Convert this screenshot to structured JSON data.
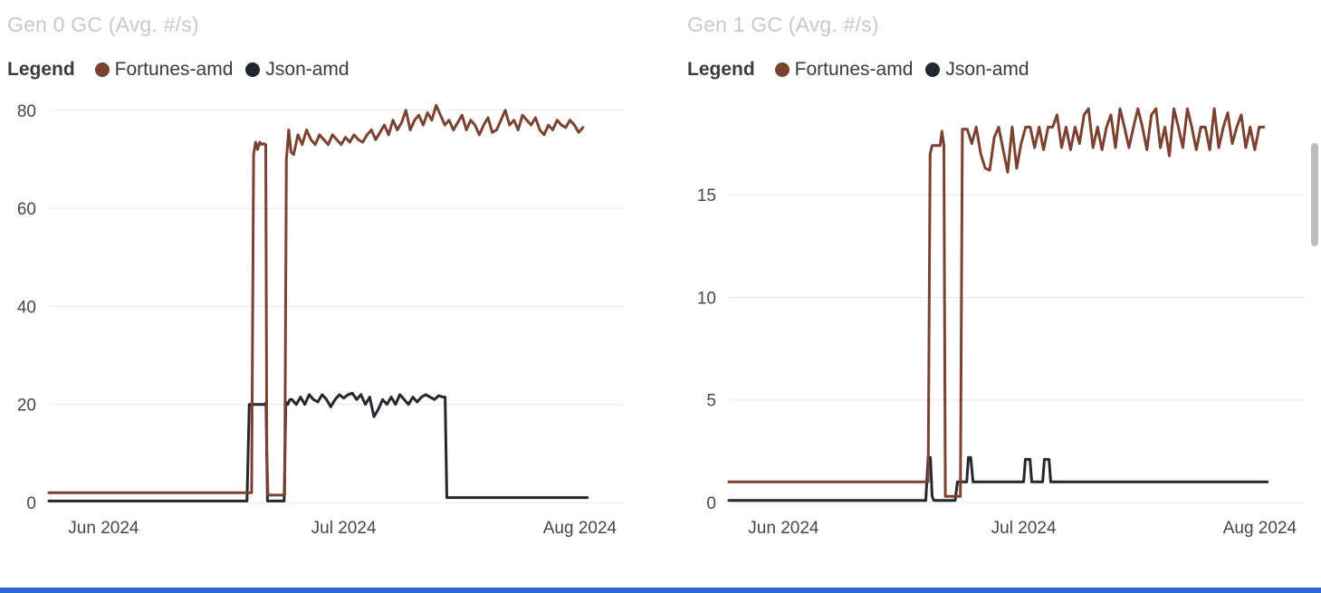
{
  "page": {
    "background": "#ffffff",
    "accent_bar_color": "#2c66cf",
    "scrollbar_color": "#b9bcc1"
  },
  "chart_data": [
    {
      "type": "line",
      "title": "Gen 0 GC (Avg. #/s)",
      "legend_label": "Legend",
      "legend_position": "top",
      "grid": true,
      "ylim": [
        0,
        82
      ],
      "y_max": 82,
      "y_ticks": [
        0,
        20,
        40,
        60,
        80
      ],
      "x_ticks": [
        {
          "pos": 0.095,
          "label": "Jun 2024"
        },
        {
          "pos": 0.512,
          "label": "Jul 2024"
        },
        {
          "pos": 0.922,
          "label": "Aug 2024"
        }
      ],
      "series": [
        {
          "name": "Fortunes-amd",
          "color": "#7b4131",
          "points": [
            [
              0,
              2
            ],
            [
              0.345,
              2
            ],
            [
              0.352,
              2
            ],
            [
              0.3555,
              71
            ],
            [
              0.359,
              73.5
            ],
            [
              0.3625,
              72
            ],
            [
              0.366,
              73.5
            ],
            [
              0.3695,
              73
            ],
            [
              0.373,
              73.2
            ],
            [
              0.3765,
              73
            ],
            [
              0.3785,
              10
            ],
            [
              0.3805,
              1.5
            ],
            [
              0.4095,
              1.5
            ],
            [
              0.4125,
              70
            ],
            [
              0.4165,
              76
            ],
            [
              0.4205,
              71.5
            ],
            [
              0.425,
              71
            ],
            [
              0.4325,
              75
            ],
            [
              0.44,
              73
            ],
            [
              0.4475,
              76
            ],
            [
              0.455,
              74
            ],
            [
              0.4625,
              73
            ],
            [
              0.47,
              75
            ],
            [
              0.4775,
              74
            ],
            [
              0.485,
              73
            ],
            [
              0.4925,
              75
            ],
            [
              0.5,
              74
            ],
            [
              0.5075,
              73
            ],
            [
              0.515,
              74.5
            ],
            [
              0.5225,
              73.5
            ],
            [
              0.53,
              75
            ],
            [
              0.5375,
              74
            ],
            [
              0.545,
              73.5
            ],
            [
              0.5525,
              75
            ],
            [
              0.56,
              76
            ],
            [
              0.5675,
              74
            ],
            [
              0.575,
              75.5
            ],
            [
              0.5825,
              77
            ],
            [
              0.59,
              75
            ],
            [
              0.5975,
              78
            ],
            [
              0.605,
              76
            ],
            [
              0.6125,
              77.5
            ],
            [
              0.62,
              80
            ],
            [
              0.6275,
              76
            ],
            [
              0.635,
              78
            ],
            [
              0.6425,
              79
            ],
            [
              0.65,
              77
            ],
            [
              0.6575,
              79.5
            ],
            [
              0.665,
              78
            ],
            [
              0.6725,
              81
            ],
            [
              0.68,
              79
            ],
            [
              0.6875,
              77
            ],
            [
              0.695,
              78
            ],
            [
              0.7025,
              76
            ],
            [
              0.71,
              77.5
            ],
            [
              0.7175,
              79
            ],
            [
              0.725,
              76
            ],
            [
              0.7325,
              78
            ],
            [
              0.74,
              77
            ],
            [
              0.7475,
              75
            ],
            [
              0.755,
              77
            ],
            [
              0.7625,
              78.5
            ],
            [
              0.77,
              75.5
            ],
            [
              0.7775,
              76
            ],
            [
              0.785,
              78
            ],
            [
              0.7925,
              80
            ],
            [
              0.8,
              77
            ],
            [
              0.8075,
              78
            ],
            [
              0.815,
              76
            ],
            [
              0.8225,
              79
            ],
            [
              0.83,
              78
            ],
            [
              0.8375,
              77
            ],
            [
              0.845,
              78.5
            ],
            [
              0.8525,
              76
            ],
            [
              0.86,
              75
            ],
            [
              0.8675,
              77
            ],
            [
              0.875,
              76
            ],
            [
              0.8825,
              78
            ],
            [
              0.89,
              77
            ],
            [
              0.8975,
              76.5
            ],
            [
              0.905,
              78
            ],
            [
              0.9125,
              77
            ],
            [
              0.92,
              75.5
            ],
            [
              0.9275,
              76.5
            ]
          ]
        },
        {
          "name": "Json-amd",
          "color": "#23272f",
          "points": [
            [
              0,
              0.3
            ],
            [
              0.344,
              0.3
            ],
            [
              0.348,
              20
            ],
            [
              0.3745,
              20
            ],
            [
              0.377,
              20.3
            ],
            [
              0.3795,
              0.3
            ],
            [
              0.4085,
              0.3
            ],
            [
              0.4115,
              20.5
            ],
            [
              0.415,
              20
            ],
            [
              0.4185,
              21
            ],
            [
              0.422,
              21
            ],
            [
              0.4295,
              20
            ],
            [
              0.437,
              21.5
            ],
            [
              0.4445,
              20
            ],
            [
              0.452,
              22
            ],
            [
              0.4595,
              21
            ],
            [
              0.467,
              20.5
            ],
            [
              0.4745,
              22
            ],
            [
              0.482,
              21
            ],
            [
              0.4895,
              19.5
            ],
            [
              0.497,
              21
            ],
            [
              0.5045,
              22
            ],
            [
              0.512,
              21.3
            ],
            [
              0.5195,
              22
            ],
            [
              0.527,
              22.3
            ],
            [
              0.5345,
              21
            ],
            [
              0.542,
              22
            ],
            [
              0.5495,
              20
            ],
            [
              0.557,
              21.5
            ],
            [
              0.5645,
              17.5
            ],
            [
              0.572,
              19
            ],
            [
              0.5795,
              21
            ],
            [
              0.587,
              20
            ],
            [
              0.5945,
              21.5
            ],
            [
              0.602,
              20
            ],
            [
              0.6095,
              22
            ],
            [
              0.617,
              21
            ],
            [
              0.6245,
              20
            ],
            [
              0.632,
              21.5
            ],
            [
              0.6395,
              20.5
            ],
            [
              0.647,
              21.5
            ],
            [
              0.6545,
              22
            ],
            [
              0.662,
              21.5
            ],
            [
              0.6695,
              21
            ],
            [
              0.677,
              21.8
            ],
            [
              0.6845,
              21.5
            ],
            [
              0.688,
              21.5
            ],
            [
              0.691,
              1
            ],
            [
              0.935,
              1
            ]
          ]
        }
      ]
    },
    {
      "type": "line",
      "title": "Gen 1 GC (Avg. #/s)",
      "legend_label": "Legend",
      "legend_position": "top",
      "grid": true,
      "ylim": [
        0,
        19.6
      ],
      "y_max": 19.6,
      "y_ticks": [
        0,
        5,
        10,
        15
      ],
      "x_ticks": [
        {
          "pos": 0.095,
          "label": "Jun 2024"
        },
        {
          "pos": 0.512,
          "label": "Jul 2024"
        },
        {
          "pos": 0.922,
          "label": "Aug 2024"
        }
      ],
      "series": [
        {
          "name": "Fortunes-amd",
          "color": "#7b4131",
          "points": [
            [
              0,
              1
            ],
            [
              0.346,
              1
            ],
            [
              0.3495,
              17
            ],
            [
              0.353,
              17.4
            ],
            [
              0.367,
              17.4
            ],
            [
              0.37,
              18.1
            ],
            [
              0.3735,
              17.4
            ],
            [
              0.376,
              0.3
            ],
            [
              0.402,
              0.3
            ],
            [
              0.4055,
              18.2
            ],
            [
              0.414,
              18.2
            ],
            [
              0.4218,
              17.5
            ],
            [
              0.4296,
              18.3
            ],
            [
              0.4374,
              17.0
            ],
            [
              0.4452,
              16.3
            ],
            [
              0.453,
              16.2
            ],
            [
              0.4608,
              17.8
            ],
            [
              0.4686,
              18.3
            ],
            [
              0.4764,
              17.2
            ],
            [
              0.4842,
              16.1
            ],
            [
              0.492,
              18.3
            ],
            [
              0.4998,
              16.3
            ],
            [
              0.5076,
              17.5
            ],
            [
              0.5154,
              18.3
            ],
            [
              0.5232,
              18.3
            ],
            [
              0.531,
              17.3
            ],
            [
              0.5388,
              18.3
            ],
            [
              0.5466,
              17.2
            ],
            [
              0.5544,
              18.3
            ],
            [
              0.5622,
              18.3
            ],
            [
              0.57,
              18.9
            ],
            [
              0.5778,
              17.3
            ],
            [
              0.5856,
              18.3
            ],
            [
              0.5934,
              17.2
            ],
            [
              0.6012,
              18.3
            ],
            [
              0.609,
              17.5
            ],
            [
              0.6168,
              18.9
            ],
            [
              0.6246,
              19.2
            ],
            [
              0.6324,
              17.3
            ],
            [
              0.6402,
              18.3
            ],
            [
              0.648,
              17.2
            ],
            [
              0.6558,
              18.3
            ],
            [
              0.6636,
              18.9
            ],
            [
              0.6714,
              17.3
            ],
            [
              0.6792,
              19.2
            ],
            [
              0.687,
              18.3
            ],
            [
              0.6948,
              17.3
            ],
            [
              0.7026,
              18.3
            ],
            [
              0.7104,
              19.2
            ],
            [
              0.7182,
              18.3
            ],
            [
              0.726,
              17.2
            ],
            [
              0.7338,
              18.9
            ],
            [
              0.7416,
              19.2
            ],
            [
              0.7494,
              17.3
            ],
            [
              0.7572,
              18.3
            ],
            [
              0.765,
              16.9
            ],
            [
              0.7728,
              19.2
            ],
            [
              0.7806,
              18.3
            ],
            [
              0.7884,
              17.3
            ],
            [
              0.7962,
              19.2
            ],
            [
              0.804,
              18.3
            ],
            [
              0.8118,
              17.2
            ],
            [
              0.8196,
              18.3
            ],
            [
              0.8274,
              18.3
            ],
            [
              0.8352,
              17.2
            ],
            [
              0.843,
              19.2
            ],
            [
              0.8508,
              17.3
            ],
            [
              0.8586,
              18.3
            ],
            [
              0.8664,
              19.0
            ],
            [
              0.8742,
              17.5
            ],
            [
              0.882,
              18.3
            ],
            [
              0.8898,
              18.9
            ],
            [
              0.8976,
              17.3
            ],
            [
              0.9054,
              18.3
            ],
            [
              0.9132,
              17.2
            ],
            [
              0.921,
              18.3
            ],
            [
              0.9288,
              18.3
            ]
          ]
        },
        {
          "name": "Json-amd",
          "color": "#23272f",
          "points": [
            [
              0,
              0.1
            ],
            [
              0.342,
              0.1
            ],
            [
              0.346,
              2.2
            ],
            [
              0.35,
              2.2
            ],
            [
              0.353,
              0.3
            ],
            [
              0.356,
              0.1
            ],
            [
              0.393,
              0.1
            ],
            [
              0.397,
              1
            ],
            [
              0.413,
              1
            ],
            [
              0.416,
              2.2
            ],
            [
              0.42,
              2.2
            ],
            [
              0.424,
              1
            ],
            [
              0.512,
              1
            ],
            [
              0.515,
              2.1
            ],
            [
              0.523,
              2.1
            ],
            [
              0.526,
              1
            ],
            [
              0.545,
              1
            ],
            [
              0.548,
              2.1
            ],
            [
              0.556,
              2.1
            ],
            [
              0.559,
              1
            ],
            [
              0.935,
              1
            ]
          ]
        }
      ]
    }
  ]
}
